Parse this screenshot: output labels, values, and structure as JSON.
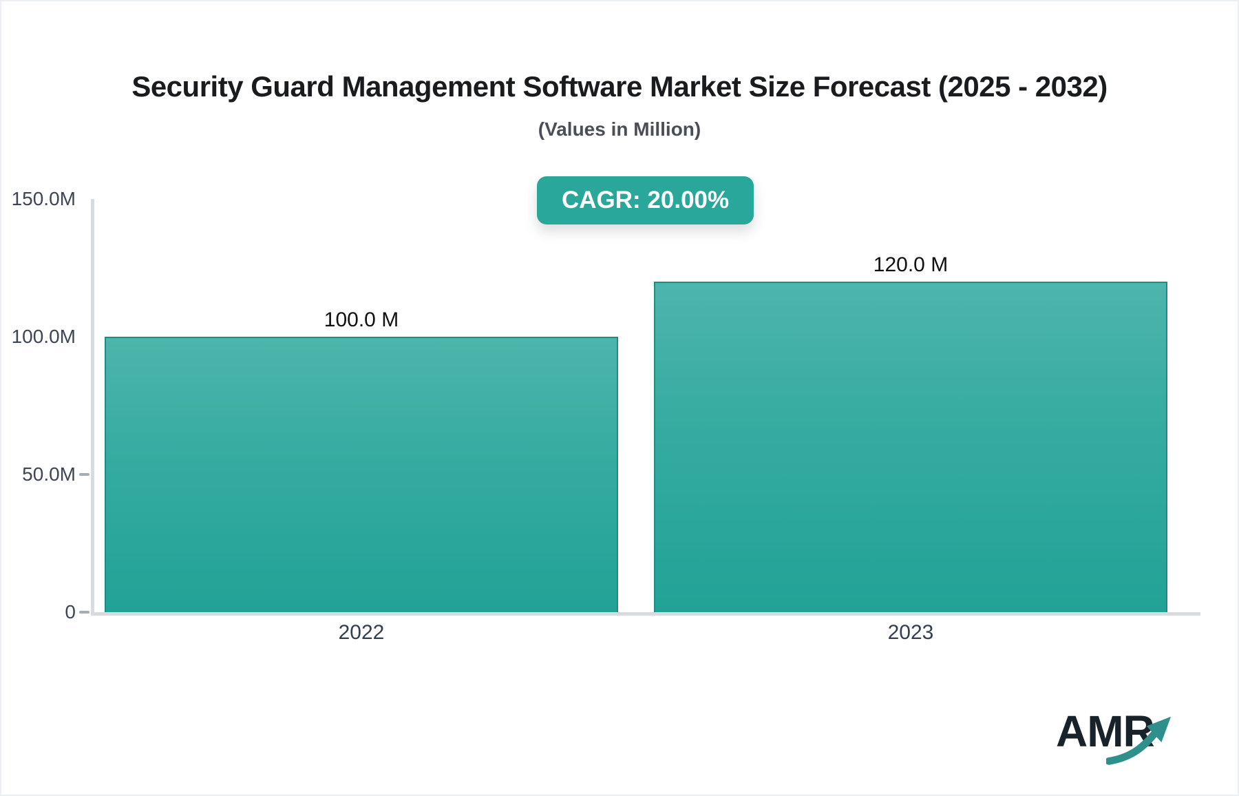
{
  "title": "Security Guard Management Software Market Size Forecast (2025 - 2032)",
  "subtitle": "(Values in Million)",
  "badge": {
    "label": "CAGR: 20.00%"
  },
  "logo": {
    "text": "AMR",
    "arrow_icon": "trend-up-arrow-icon"
  },
  "colors": {
    "accent_teal": "#2aa79b",
    "bar_gradient_top": "#4eb5ab",
    "bar_gradient_bottom": "#22a296",
    "bar_border": "#1d8c84",
    "axis_line": "#d7dae0",
    "label_dark": "#3c4654"
  },
  "chart_data": {
    "type": "bar",
    "categories": [
      "2022",
      "2023"
    ],
    "values": [
      100.0,
      120.0
    ],
    "value_labels": [
      "100.0 M",
      "120.0 M"
    ],
    "title": "Security Guard Management Software Market Size Forecast (2025 - 2032)",
    "subtitle": "(Values in Million)",
    "xlabel": "",
    "ylabel": "",
    "unit": "Million",
    "ylim": [
      0,
      150
    ],
    "yticks": [
      {
        "label": "150.0M",
        "value": 150,
        "dash": false
      },
      {
        "label": "100.0M",
        "value": 100,
        "dash": false
      },
      {
        "label": "50.0M",
        "value": 50,
        "dash": true
      },
      {
        "label": "0",
        "value": 0,
        "dash": true
      }
    ],
    "grid": false,
    "legend": false,
    "annotations": [
      "CAGR: 20.00%"
    ]
  }
}
